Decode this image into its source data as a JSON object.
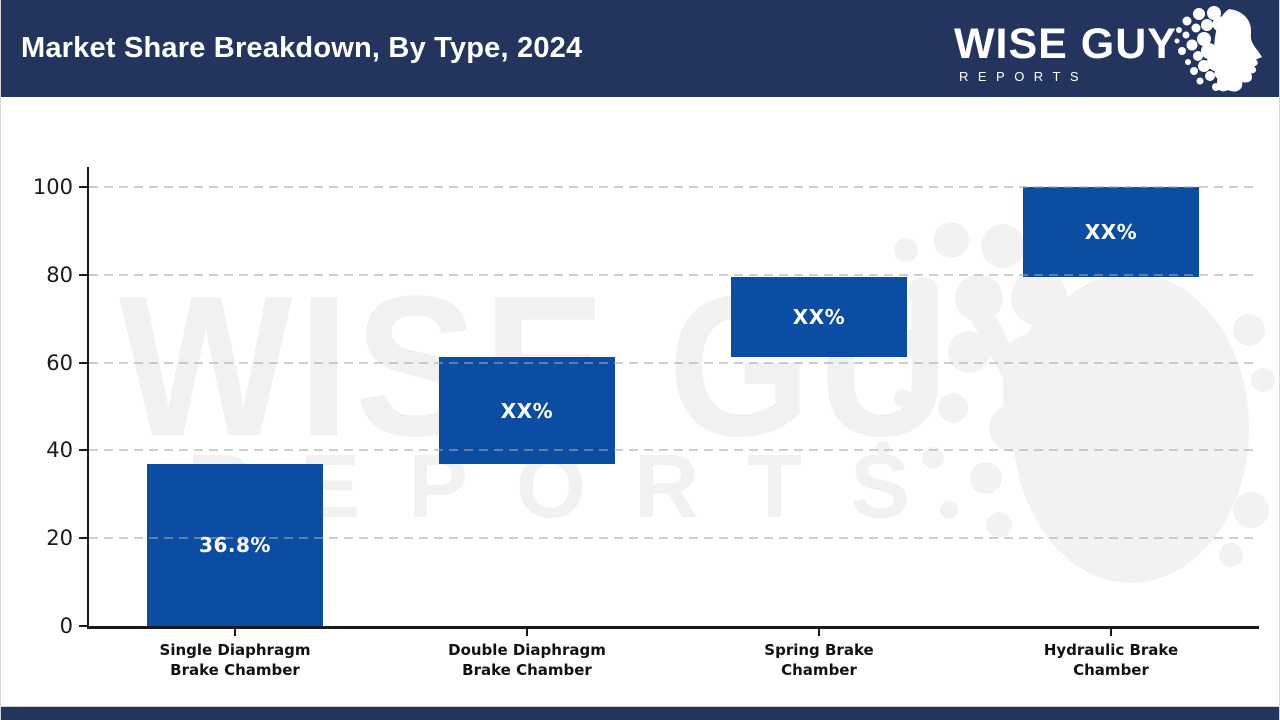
{
  "header": {
    "title": "Market Share Breakdown, By Type, 2024",
    "bg_color": "#23355E",
    "logo": {
      "line1": "WISE GUY",
      "line2": "REPORTS"
    }
  },
  "watermark": {
    "line1": "WISE GUY",
    "line2": "REPORTS"
  },
  "chart_data": {
    "type": "bar",
    "subtype": "waterfall",
    "title": "Market Share Breakdown, By Type, 2024",
    "categories": [
      "Single Diaphragm\nBrake Chamber",
      "Double Diaphragm\nBrake Chamber",
      "Spring Brake\nChamber",
      "Hydraulic Brake\nChamber"
    ],
    "segments": [
      {
        "start": 0,
        "end": 36.8,
        "label": "36.8%"
      },
      {
        "start": 36.8,
        "end": 61.2,
        "label": "XX%"
      },
      {
        "start": 61.2,
        "end": 79.6,
        "label": "XX%"
      },
      {
        "start": 79.6,
        "end": 100,
        "label": "XX%"
      }
    ],
    "ylim": [
      0,
      100
    ],
    "yticks": [
      0,
      20,
      40,
      60,
      80,
      100
    ],
    "grid": "dashed-horizontal",
    "legend": "none",
    "bar_color": "#0B4DA2",
    "bar_label_color": "#FFFFFF",
    "axis_color": "#1A1A1A",
    "gridline_color": "#D9D9D9"
  }
}
